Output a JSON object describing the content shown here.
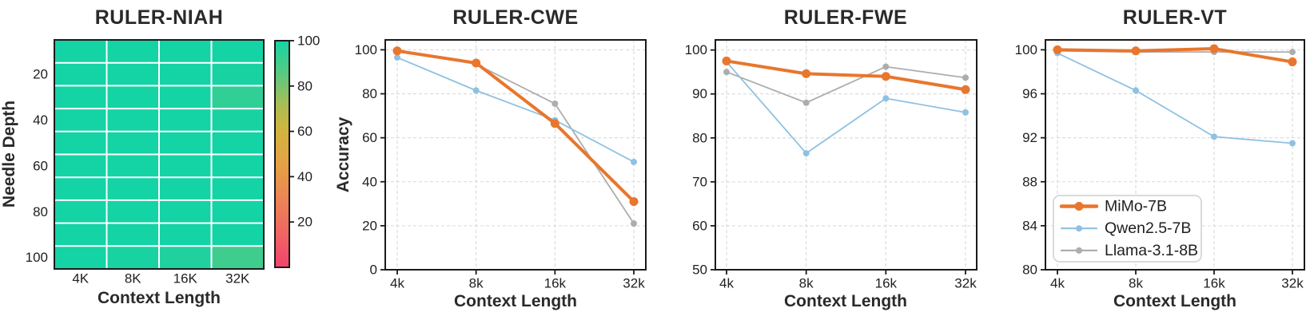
{
  "figure": {
    "background": "#ffffff",
    "text_color": "#1f1f1f"
  },
  "chart_data": [
    {
      "type": "heatmap",
      "title": "RULER-NIAH",
      "xlabel": "Context Length",
      "ylabel": "Needle Depth",
      "x_labels": [
        "4K",
        "8K",
        "16K",
        "32K"
      ],
      "y_tick_labels": [
        "20",
        "40",
        "60",
        "80",
        "100"
      ],
      "y_tick_rows": [
        1,
        3,
        5,
        7,
        9
      ],
      "row_depths": [
        10,
        20,
        30,
        40,
        50,
        60,
        70,
        80,
        90,
        100
      ],
      "values": [
        [
          100,
          100,
          100,
          100
        ],
        [
          100,
          100,
          100,
          99
        ],
        [
          100,
          100,
          100,
          94
        ],
        [
          100,
          100,
          100,
          99
        ],
        [
          100,
          100,
          100,
          100
        ],
        [
          100,
          100,
          100,
          100
        ],
        [
          100,
          100,
          100,
          100
        ],
        [
          100,
          100,
          100,
          100
        ],
        [
          100,
          100,
          100,
          100
        ],
        [
          100,
          99,
          97.5,
          91
        ]
      ],
      "colormap_stops": [
        [
          0,
          "#F2436E"
        ],
        [
          15,
          "#EF6662"
        ],
        [
          30,
          "#EC8455"
        ],
        [
          45,
          "#E5A145"
        ],
        [
          60,
          "#D3B43E"
        ],
        [
          72,
          "#A9BD55"
        ],
        [
          85,
          "#5BC97F"
        ],
        [
          100,
          "#14D3A5"
        ]
      ],
      "colorbar": {
        "ticks": [
          100,
          80,
          60,
          40,
          20
        ],
        "vmin": 0,
        "vmax": 100
      },
      "grid_color": "#ffffff"
    },
    {
      "type": "line",
      "title": "RULER-CWE",
      "xlabel": "Context Length",
      "ylabel": "Accuracy",
      "x": [
        "4k",
        "8k",
        "16k",
        "32k"
      ],
      "yticks": [
        0,
        20,
        40,
        60,
        80,
        100
      ],
      "ylim": [
        0,
        104.5
      ],
      "grid": true,
      "series": [
        {
          "name": "MiMo-7B",
          "color": "#E8762D",
          "emphasis": true,
          "values": [
            99.5,
            94,
            66.5,
            31
          ]
        },
        {
          "name": "Qwen2.5-7B",
          "color": "#8FC1E1",
          "emphasis": false,
          "values": [
            96.5,
            81.5,
            68,
            49
          ]
        },
        {
          "name": "Llama-3.1-8B",
          "color": "#ADADAD",
          "emphasis": false,
          "values": [
            99.5,
            93.5,
            75.5,
            21
          ]
        }
      ]
    },
    {
      "type": "line",
      "title": "RULER-FWE",
      "xlabel": "Context Length",
      "ylabel": "",
      "x": [
        "4k",
        "8k",
        "16k",
        "32k"
      ],
      "yticks": [
        50,
        60,
        70,
        80,
        90,
        100
      ],
      "ylim": [
        50,
        102.3
      ],
      "grid": true,
      "series": [
        {
          "name": "MiMo-7B",
          "color": "#E8762D",
          "emphasis": true,
          "values": [
            97.5,
            94.6,
            94,
            91
          ]
        },
        {
          "name": "Qwen2.5-7B",
          "color": "#8FC1E1",
          "emphasis": false,
          "values": [
            97.3,
            76.5,
            89,
            85.8
          ]
        },
        {
          "name": "Llama-3.1-8B",
          "color": "#ADADAD",
          "emphasis": false,
          "values": [
            95,
            88,
            96.2,
            93.7
          ]
        }
      ]
    },
    {
      "type": "line",
      "title": "RULER-VT",
      "xlabel": "Context Length",
      "ylabel": "",
      "x": [
        "4k",
        "8k",
        "16k",
        "32k"
      ],
      "yticks": [
        80,
        84,
        88,
        92,
        96,
        100
      ],
      "ylim": [
        80,
        100.9
      ],
      "grid": true,
      "legend": true,
      "legend_entries": [
        "MiMo-7B",
        "Qwen2.5-7B",
        "Llama-3.1-8B"
      ],
      "series": [
        {
          "name": "MiMo-7B",
          "color": "#E8762D",
          "emphasis": true,
          "values": [
            100,
            99.9,
            100.1,
            98.9
          ]
        },
        {
          "name": "Qwen2.5-7B",
          "color": "#8FC1E1",
          "emphasis": false,
          "values": [
            99.7,
            96.3,
            92.1,
            91.5
          ]
        },
        {
          "name": "Llama-3.1-8B",
          "color": "#ADADAD",
          "emphasis": false,
          "values": [
            99.9,
            99.8,
            99.8,
            99.8
          ]
        }
      ]
    }
  ]
}
